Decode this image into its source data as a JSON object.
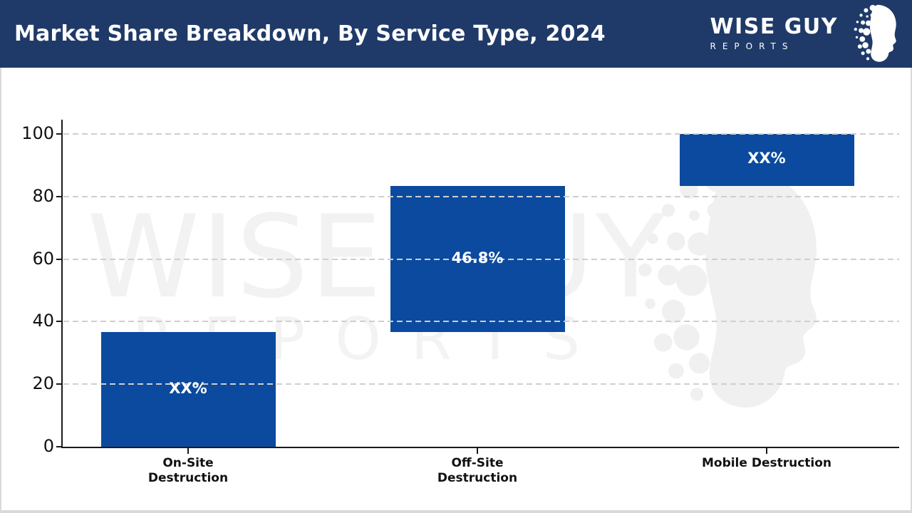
{
  "header": {
    "title": "Market Share Breakdown, By Service Type, 2024",
    "logo": {
      "wordmark": "WISE GUY",
      "sub": "REPORTS"
    }
  },
  "watermark": {
    "wordmark": "WISE GUY",
    "sub": "REPORTS"
  },
  "chart_data": {
    "type": "bar",
    "variant": "floating-segment-waterfall",
    "title": "Market Share Breakdown, By Service Type, 2024",
    "categories": [
      "On-Site Destruction",
      "Off-Site Destruction",
      "Mobile Destruction"
    ],
    "bars": [
      {
        "category": "On-Site Destruction",
        "label_lines": [
          "On-Site",
          "Destruction"
        ],
        "start": 0,
        "end": 36.6,
        "value_label": "XX%"
      },
      {
        "category": "Off-Site Destruction",
        "label_lines": [
          "Off-Site",
          "Destruction"
        ],
        "start": 36.6,
        "end": 83.4,
        "value_label": "46.8%"
      },
      {
        "category": "Mobile Destruction",
        "label_lines": [
          "Mobile Destruction"
        ],
        "start": 83.4,
        "end": 100,
        "value_label": "XX%"
      }
    ],
    "ylim": [
      0,
      104
    ],
    "yticks": [
      0,
      20,
      40,
      60,
      80,
      100
    ],
    "grid": {
      "show": true,
      "style": "dashed",
      "color": "#cfcfcf"
    },
    "bar_color": "#0b4a9f",
    "bar_label_color": "#ffffff",
    "axis_color": "#1a1a1a",
    "header_color": "#1f3a68",
    "legend": null
  }
}
